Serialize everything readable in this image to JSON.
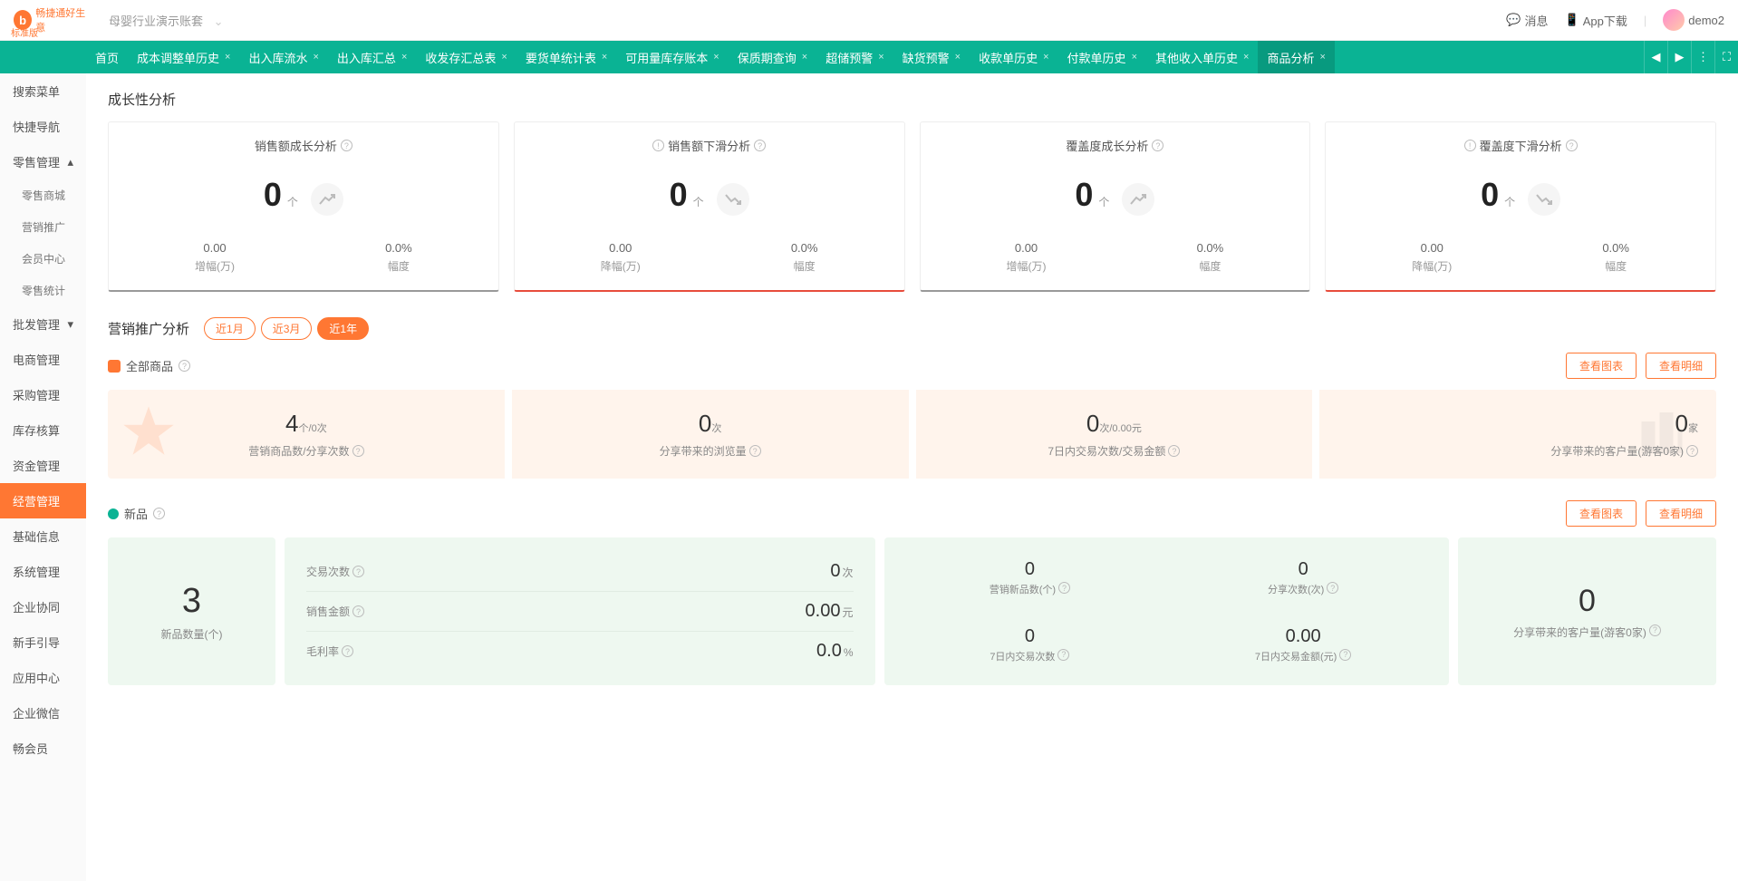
{
  "header": {
    "logo_text": "畅捷通好生意",
    "logo_sub": "标准版",
    "account": "母婴行业演示账套",
    "msg": "消息",
    "download": "App下载",
    "user": "demo2"
  },
  "tabs": {
    "home": "首页",
    "items": [
      "成本调整单历史",
      "出入库流水",
      "出入库汇总",
      "收发存汇总表",
      "要货单统计表",
      "可用量库存账本",
      "保质期查询",
      "超储预警",
      "缺货预警",
      "收款单历史",
      "付款单历史",
      "其他收入单历史",
      "商品分析"
    ],
    "active_index": 12
  },
  "sidebar": {
    "search": "搜索菜单",
    "quick": "快捷导航",
    "retail": "零售管理",
    "retail_subs": [
      "零售商城",
      "营销推广",
      "会员中心",
      "零售统计"
    ],
    "items": [
      "批发管理",
      "电商管理",
      "采购管理",
      "库存核算",
      "资金管理",
      "经营管理",
      "基础信息",
      "系统管理",
      "企业协同",
      "新手引导",
      "应用中心",
      "企业微信",
      "畅会员"
    ],
    "active": "经营管理"
  },
  "growth": {
    "title": "成长性分析",
    "cards": [
      {
        "title": "销售额成长分析",
        "value": "0",
        "unit": "个",
        "trend": "up",
        "left_val": "0.00",
        "left_lbl": "增幅(万)",
        "right_val": "0.0%",
        "right_lbl": "幅度",
        "tone": "neu"
      },
      {
        "title": "销售额下滑分析",
        "value": "0",
        "unit": "个",
        "trend": "down",
        "left_val": "0.00",
        "left_lbl": "降幅(万)",
        "right_val": "0.0%",
        "right_lbl": "幅度",
        "tone": "neg"
      },
      {
        "title": "覆盖度成长分析",
        "value": "0",
        "unit": "个",
        "trend": "up",
        "left_val": "0.00",
        "left_lbl": "增幅(万)",
        "right_val": "0.0%",
        "right_lbl": "幅度",
        "tone": "neu"
      },
      {
        "title": "覆盖度下滑分析",
        "value": "0",
        "unit": "个",
        "trend": "down",
        "left_val": "0.00",
        "left_lbl": "降幅(万)",
        "right_val": "0.0%",
        "right_lbl": "幅度",
        "tone": "neg"
      }
    ]
  },
  "marketing": {
    "title": "营销推广分析",
    "pills": [
      "近1月",
      "近3月",
      "近1年"
    ],
    "active_pill": 2,
    "all_goods": {
      "label": "全部商品",
      "view_chart": "查看图表",
      "view_detail": "查看明细",
      "cells": [
        {
          "big": "4",
          "sub": "个/0次",
          "lbl": "营销商品数/分享次数"
        },
        {
          "big": "0",
          "sub": "次",
          "lbl": "分享带来的浏览量"
        },
        {
          "big": "0",
          "sub": "次/0.00元",
          "lbl": "7日内交易次数/交易金额"
        },
        {
          "big": "0",
          "sub": "家",
          "lbl": "分享带来的客户量(游客0家)"
        }
      ]
    },
    "new_goods": {
      "label": "新品",
      "view_chart": "查看图表",
      "view_detail": "查看明细",
      "left_big": "3",
      "left_lbl": "新品数量(个)",
      "mid": [
        {
          "k": "交易次数",
          "v": "0",
          "u": "次"
        },
        {
          "k": "销售金额",
          "v": "0.00",
          "u": "元"
        },
        {
          "k": "毛利率",
          "v": "0.0",
          "u": "%"
        }
      ],
      "cols": [
        {
          "v": "0",
          "l": "营销新品数(个)"
        },
        {
          "v": "0",
          "l": "7日内交易次数"
        },
        {
          "v": "0",
          "l": "分享次数(次)"
        },
        {
          "v": "0.00",
          "l": "7日内交易金额(元)"
        }
      ],
      "right_big": "0",
      "right_lbl": "分享带来的客户量(游客0家)"
    }
  }
}
